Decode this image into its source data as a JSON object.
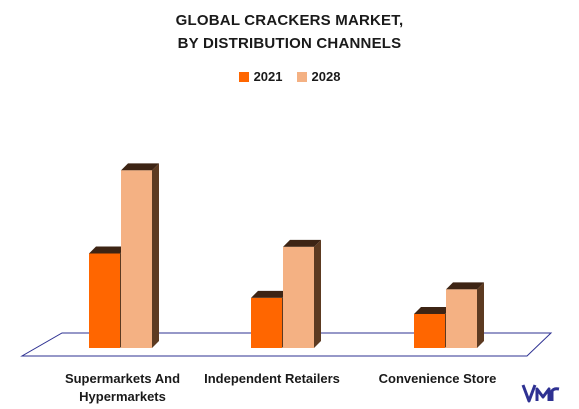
{
  "title_line1": "GLOBAL CRACKERS MARKET,",
  "title_line2": "BY DISTRIBUTION CHANNELS",
  "legend": [
    {
      "label": "2021",
      "color": "#FF6600"
    },
    {
      "label": "2028",
      "color": "#F4B183"
    }
  ],
  "chart_data": {
    "type": "bar",
    "title": "GLOBAL CRACKERS MARKET, BY DISTRIBUTION CHANNELS",
    "categories": [
      "Supermarkets And Hypermarkets",
      "Independent Retailers",
      "Convenience Store"
    ],
    "series": [
      {
        "name": "2021",
        "values": [
          100,
          53,
          36
        ]
      },
      {
        "name": "2028",
        "values": [
          188,
          107,
          62
        ]
      }
    ],
    "ylim": [
      0,
      200
    ],
    "grid": false,
    "legend_position": "top-center",
    "colors": {
      "2021": "#FF6600",
      "2028": "#F4B183",
      "side": "#5C3A21",
      "floor": "#2E3192"
    }
  },
  "categories_display": [
    {
      "line1": "Supermarkets And",
      "line2": "Hypermarkets"
    },
    {
      "line1": "Independent Retailers",
      "line2": ""
    },
    {
      "line1": "Convenience Store",
      "line2": ""
    }
  ],
  "logo_icon": "vmr-logo-icon"
}
